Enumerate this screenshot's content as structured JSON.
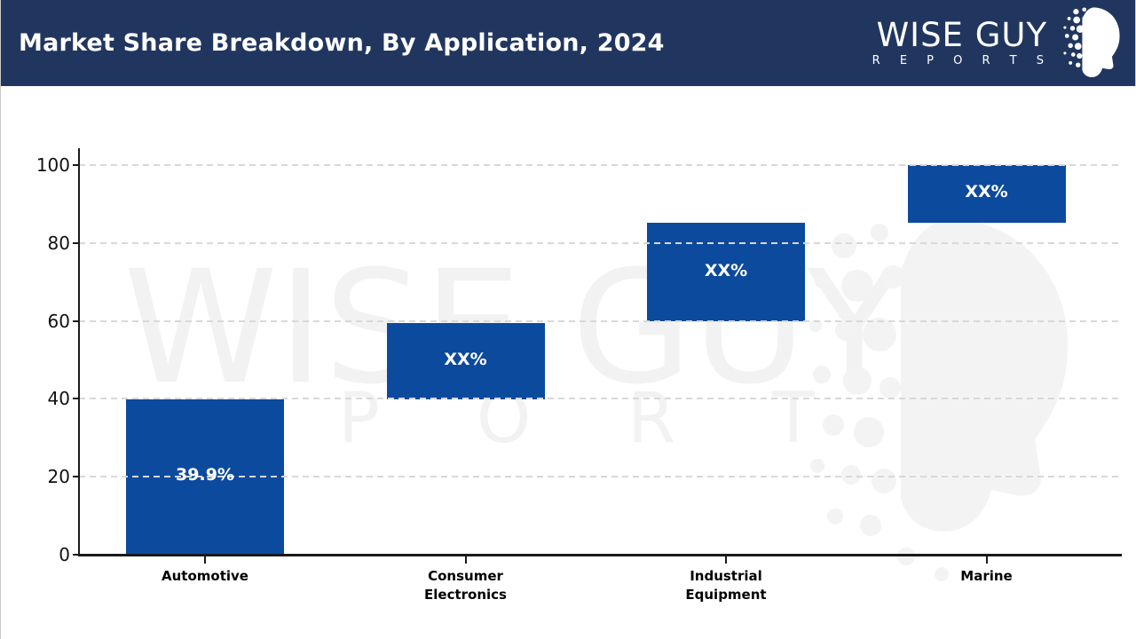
{
  "header": {
    "title": "Market Share Breakdown, By Application, 2024",
    "logo": {
      "wordmark": "WISE GUY",
      "sub": "R E P O R T S"
    }
  },
  "watermark": {
    "line1": "WISE GUY",
    "line2": "P O R T S"
  },
  "colors": {
    "header_bg": "#21365f",
    "bar_blue": "#0c4a9e",
    "axis_black": "#1a1a1a",
    "gridline_gray": "#d8d8d8",
    "bar_label_white": "#ffffff",
    "watermark_gray": "#f2f2f2"
  },
  "chart_data": {
    "type": "bar",
    "subtype": "floating-waterfall",
    "title": "Market Share Breakdown, By Application, 2024",
    "xlabel": "",
    "ylabel": "",
    "ylim": [
      0,
      100
    ],
    "yticks": [
      0,
      20,
      40,
      60,
      80,
      100
    ],
    "grid": {
      "horizontal": true,
      "style": "dashed",
      "above_bars": true
    },
    "legend": null,
    "categories": [
      {
        "name": "Automotive",
        "lines": [
          "Automotive"
        ]
      },
      {
        "name": "Consumer Electronics",
        "lines": [
          "Consumer",
          "Electronics"
        ]
      },
      {
        "name": "Industrial Equipment",
        "lines": [
          "Industrial",
          "Equipment"
        ]
      },
      {
        "name": "Marine",
        "lines": [
          "Marine"
        ]
      }
    ],
    "segments": [
      {
        "category": "Automotive",
        "start": 0,
        "end": 39.9,
        "label": "39.9%"
      },
      {
        "category": "Consumer Electronics",
        "start": 39.9,
        "end": 59.4,
        "label": "XX%"
      },
      {
        "category": "Industrial Equipment",
        "start": 59.8,
        "end": 85.1,
        "label": "XX%"
      },
      {
        "category": "Marine",
        "start": 85.3,
        "end": 99.9,
        "label": "XX%"
      }
    ]
  }
}
